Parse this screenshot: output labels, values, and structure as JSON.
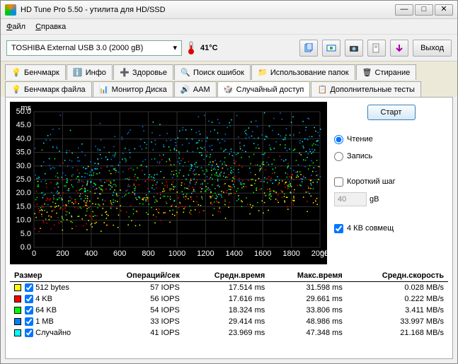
{
  "window": {
    "title": "HD Tune Pro 5.50 - утилита для HD/SSD"
  },
  "menu": {
    "file": "Файл",
    "help": "Справка"
  },
  "toolbar": {
    "drive": "TOSHIBA External USB 3.0 (2000 gB)",
    "temperature": "41°C",
    "exit": "Выход"
  },
  "tabs": {
    "row1": [
      {
        "label": "Бенчмарк",
        "icon": "bulb"
      },
      {
        "label": "Инфо",
        "icon": "info"
      },
      {
        "label": "Здоровье",
        "icon": "plus"
      },
      {
        "label": "Поиск ошибок",
        "icon": "search"
      },
      {
        "label": "Использование папок",
        "icon": "folder"
      },
      {
        "label": "Стирание",
        "icon": "trash"
      }
    ],
    "row2": [
      {
        "label": "Бенчмарк файла",
        "icon": "bulb2"
      },
      {
        "label": "Монитор Диска",
        "icon": "monitor"
      },
      {
        "label": "AAM",
        "icon": "speaker"
      },
      {
        "label": "Случайный доступ",
        "icon": "random",
        "active": true
      },
      {
        "label": "Дополнительные тесты",
        "icon": "extra"
      }
    ]
  },
  "chart": {
    "ylabel": "ms",
    "ymin": 0,
    "ymax": 50,
    "ystep": 5,
    "xmin": 0,
    "xmax": 2000,
    "xstep": 200,
    "xunit": "gB",
    "bg": "#000000",
    "grid_color": "#303030",
    "text_color": "#ffffff",
    "series_colors": [
      "#ffff00",
      "#ff0000",
      "#00ff00",
      "#0080ff",
      "#00ffff"
    ]
  },
  "panel": {
    "start": "Старт",
    "read": "Чтение",
    "write": "Запись",
    "mode_selected": "read",
    "short_stroke": "Короткий шаг",
    "short_stroke_checked": false,
    "stroke_value": "40",
    "stroke_unit": "gB",
    "align4k": "4 КВ совмещ",
    "align4k_checked": true
  },
  "results": {
    "headers": [
      "Размер",
      "Операций/сек",
      "Средн.время",
      "Макс.время",
      "Средн.скорость"
    ],
    "rows": [
      {
        "color": "#ffff00",
        "checked": true,
        "size": "512 bytes",
        "iops": "57 IOPS",
        "avg": "17.514 ms",
        "max": "31.598 ms",
        "speed": "0.028 MB/s"
      },
      {
        "color": "#ff0000",
        "checked": true,
        "size": "4 KB",
        "iops": "56 IOPS",
        "avg": "17.616 ms",
        "max": "29.661 ms",
        "speed": "0.222 MB/s"
      },
      {
        "color": "#00ff00",
        "checked": true,
        "size": "64 KB",
        "iops": "54 IOPS",
        "avg": "18.324 ms",
        "max": "33.806 ms",
        "speed": "3.411 MB/s"
      },
      {
        "color": "#0080ff",
        "checked": true,
        "size": "1 MB",
        "iops": "33 IOPS",
        "avg": "29.414 ms",
        "max": "48.986 ms",
        "speed": "33.997 MB/s"
      },
      {
        "color": "#00ffff",
        "checked": true,
        "size": "Случайно",
        "iops": "41 IOPS",
        "avg": "23.969 ms",
        "max": "47.348 ms",
        "speed": "21.168 MB/s"
      }
    ]
  }
}
